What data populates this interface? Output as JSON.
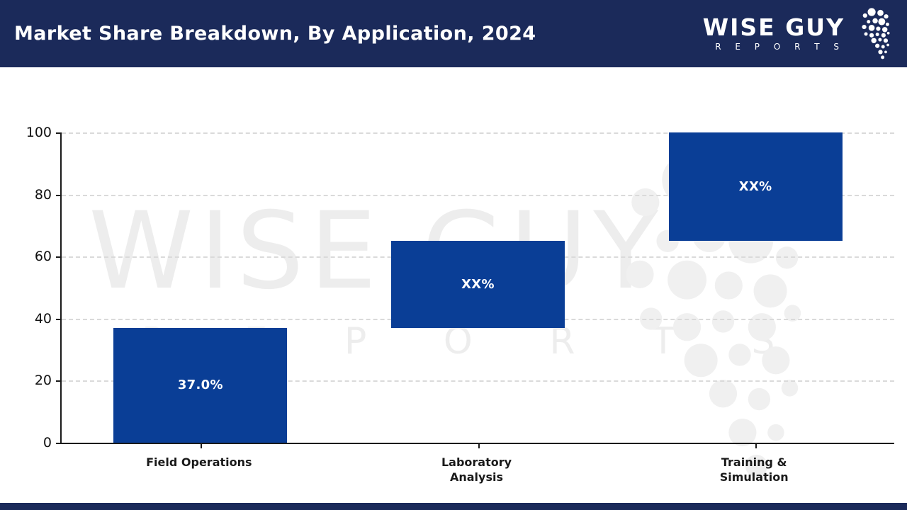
{
  "header": {
    "title": "Market Share Breakdown, By Application, 2024",
    "brand": {
      "name": "WISE GUY",
      "subtitle": "R E P O R T S"
    },
    "bg_color": "#1b2a5a",
    "text_color": "#ffffff"
  },
  "watermark": {
    "line1": "WISE GUY",
    "line2": "R E P O R T S"
  },
  "footer": {
    "bg_color": "#1b2a5a"
  },
  "chart_data": {
    "type": "bar",
    "subtype": "floating-segment-waterfall",
    "title": "Market Share Breakdown, By Application, 2024",
    "categories": [
      "Field Operations",
      "Laboratory\nAnalysis",
      "Training &\nSimulation"
    ],
    "segments": [
      {
        "category": "Field Operations",
        "start": 0,
        "end": 37,
        "label": "37.0%"
      },
      {
        "category": "Laboratory Analysis",
        "start": 37,
        "end": 65,
        "label": "XX%"
      },
      {
        "category": "Training & Simulation",
        "start": 65,
        "end": 100,
        "label": "XX%"
      }
    ],
    "xlabel": "",
    "ylabel": "",
    "ylim": [
      0,
      100
    ],
    "yticks": [
      0,
      20,
      40,
      60,
      80,
      100
    ],
    "grid": "horizontal-dashed",
    "legend": "none",
    "bar_color": "#0a3e96",
    "bar_label_color": "#ffffff"
  }
}
